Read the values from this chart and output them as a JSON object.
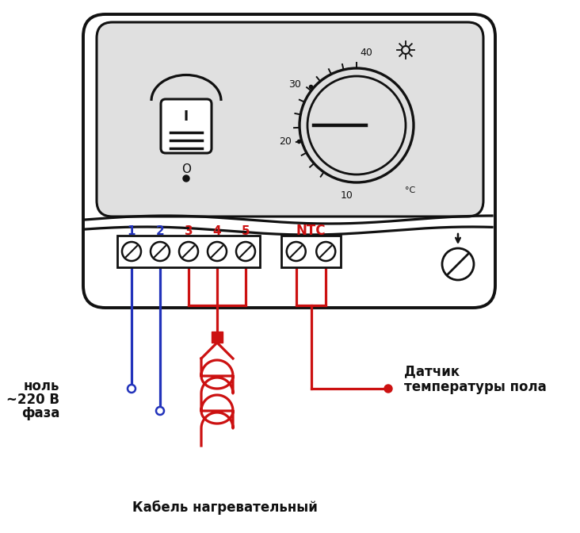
{
  "bg_color": "#ffffff",
  "thermostat_body_color": "#e0e0e0",
  "thermostat_outline_color": "#111111",
  "wire_blue_color": "#2233bb",
  "wire_red_color": "#cc1111",
  "terminal_color": "#111111",
  "text_color_black": "#111111",
  "text_color_blue": "#2233bb",
  "text_color_red": "#cc1111",
  "label_nol": "ноль",
  "label_220": "~220 В",
  "label_faza": "фаза",
  "label_cable": "Кабель нагревательный",
  "label_sensor_line1": "Датчик",
  "label_sensor_line2": "температуры пола",
  "terminal_labels": [
    "1",
    "2",
    "3",
    "4",
    "5"
  ],
  "terminal_colors": [
    "#2233bb",
    "#2233bb",
    "#cc1111",
    "#cc1111",
    "#cc1111"
  ],
  "ntc_label": "NTC",
  "celsius_label": "°C"
}
